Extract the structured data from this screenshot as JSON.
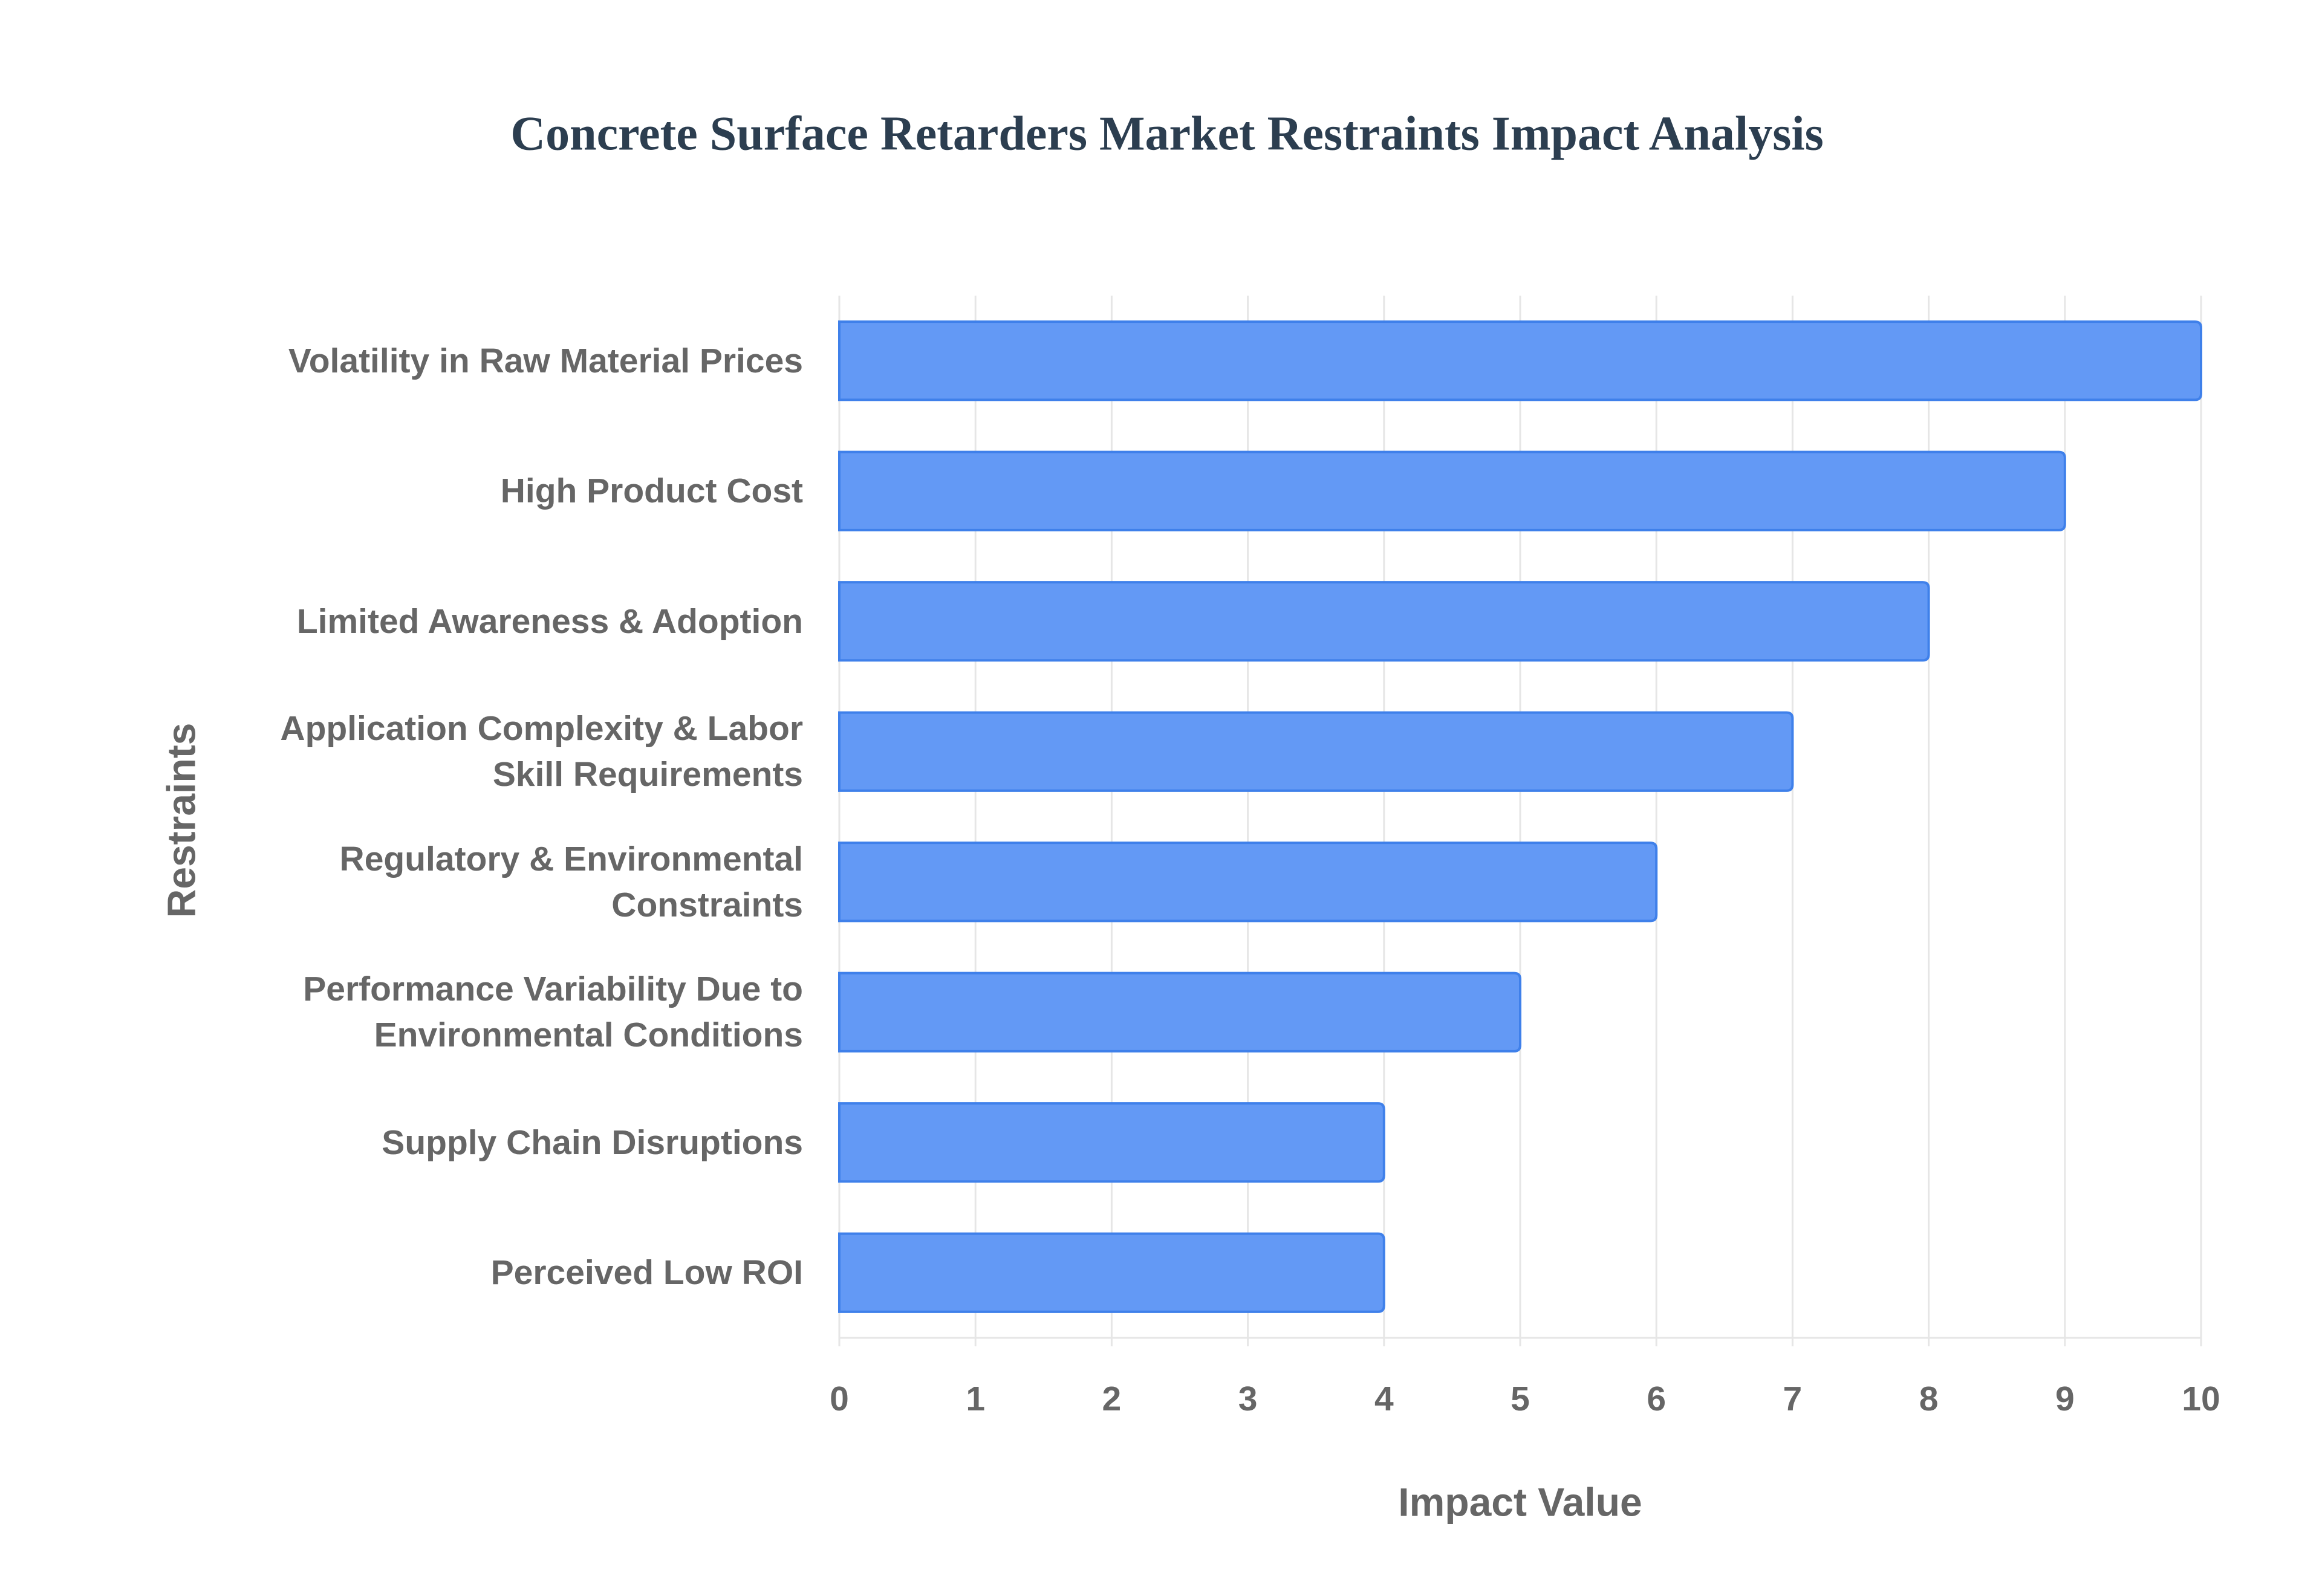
{
  "chart_data": {
    "type": "bar",
    "orientation": "horizontal",
    "title": "Concrete Surface Retarders Market Restraints Impact Analysis",
    "x_label": "Impact Value",
    "y_label": "Restraints",
    "categories": [
      "Volatility in Raw Material Prices",
      "High Product Cost",
      "Limited Awareness & Adoption",
      "Application Complexity & Labor Skill Requirements",
      "Regulatory & Environmental Constraints",
      "Performance Variability Due to Environmental Conditions",
      "Supply Chain Disruptions",
      "Perceived Low ROI"
    ],
    "values": [
      10,
      9,
      8,
      7,
      6,
      5,
      4,
      4
    ],
    "color": "#6399f5",
    "edge_color": "#3f80ea",
    "xlim": [
      0,
      10
    ],
    "xticks": [
      0,
      1,
      2,
      3,
      4,
      5,
      6,
      7,
      8,
      9,
      10
    ],
    "grid": true
  }
}
